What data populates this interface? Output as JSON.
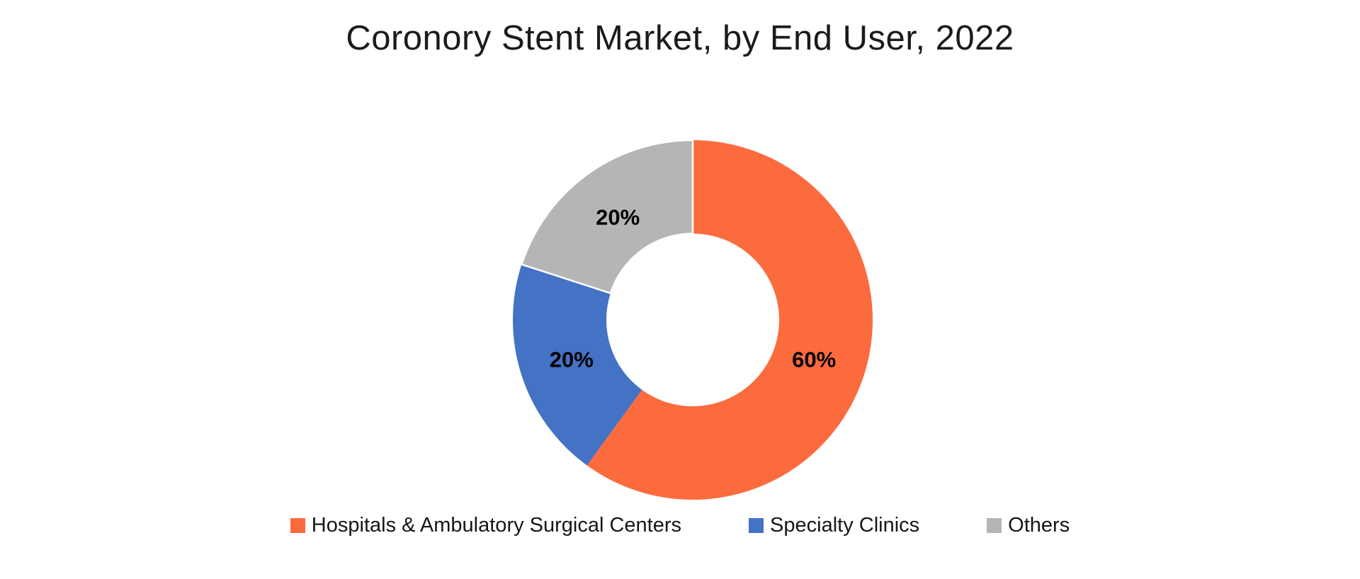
{
  "page": {
    "background_color": "#ffffff"
  },
  "chart_data": {
    "type": "pie",
    "subtype": "donut",
    "title": "Coronory Stent Market, by End User, 2022",
    "start_angle_deg": 0,
    "direction": "clockwise",
    "hole_ratio": 0.48,
    "legend_position": "bottom",
    "grid": false,
    "data_label_style": "bold-black-percent",
    "slices": [
      {
        "label": "Hospitals & Ambulatory Surgical Centers",
        "value": 60,
        "display": "60%",
        "color": "#FC6B3E",
        "border": "none"
      },
      {
        "label": "Specialty Clinics",
        "value": 20,
        "display": "20%",
        "color": "#4472C4",
        "border": "none"
      },
      {
        "label": "Others",
        "value": 20,
        "display": "20%",
        "color": "#B5B5B5",
        "border": "#ffffff"
      }
    ]
  }
}
